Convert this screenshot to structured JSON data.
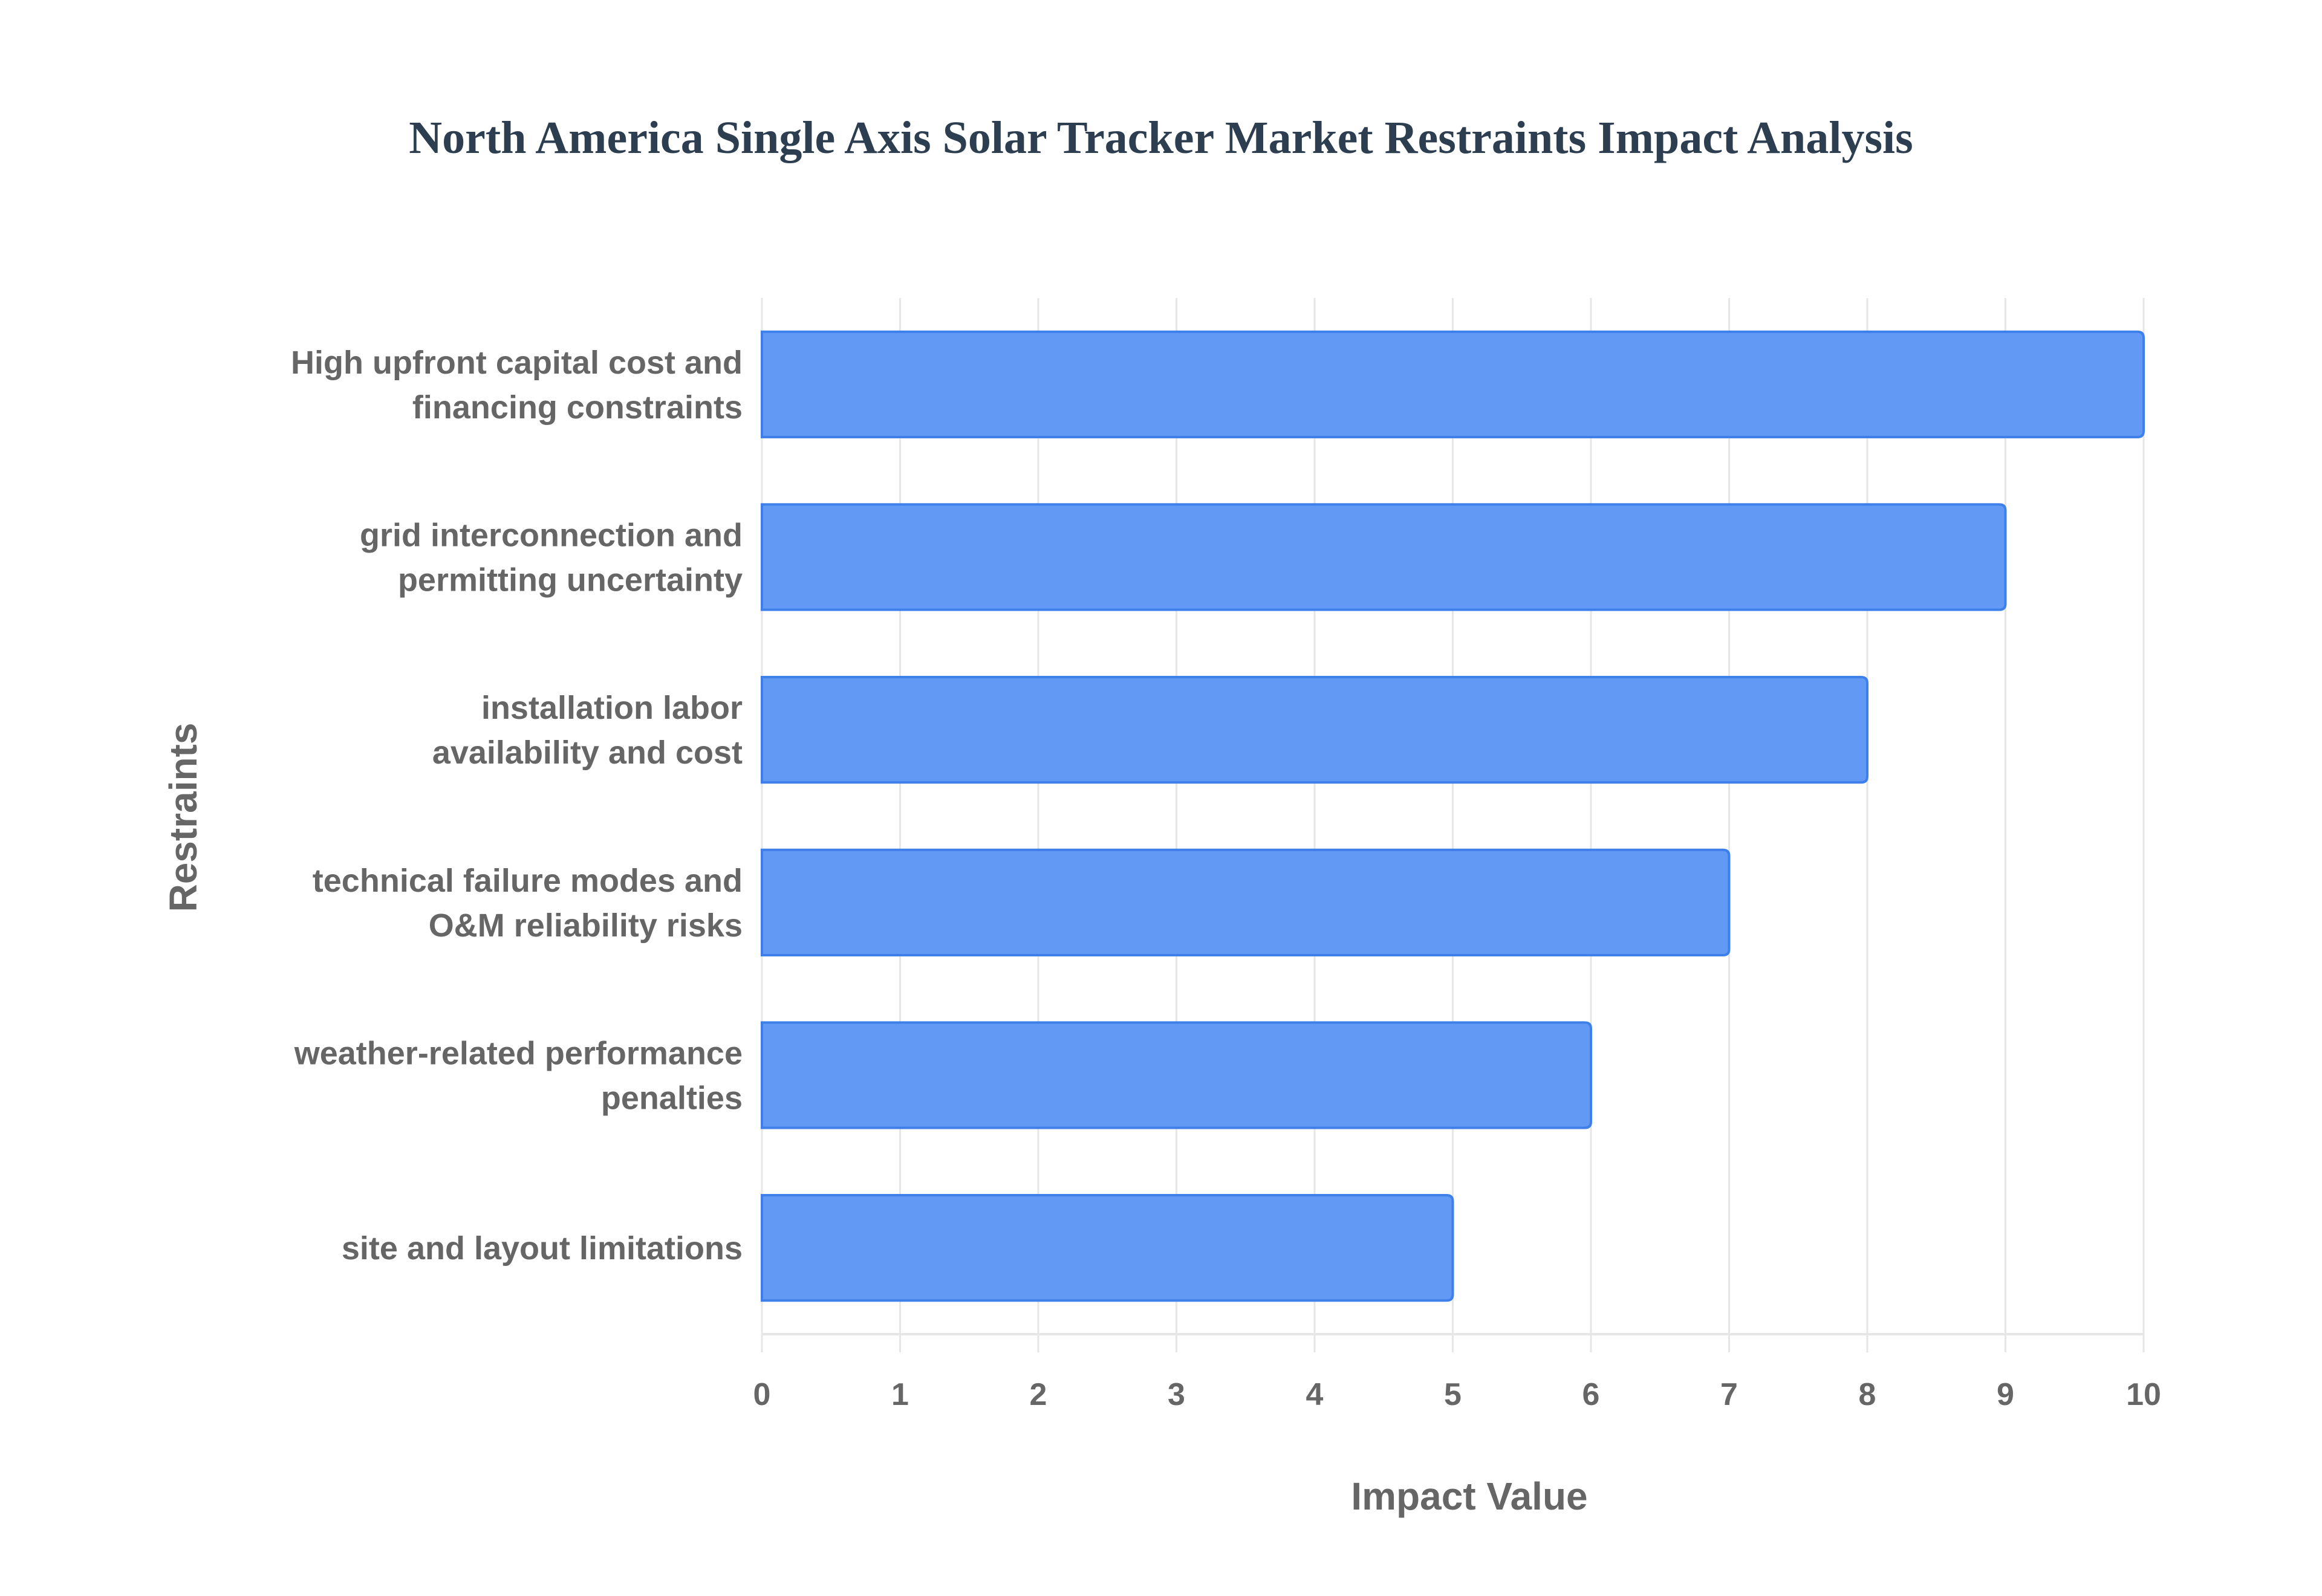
{
  "chart_data": {
    "type": "bar",
    "orientation": "horizontal",
    "title": "North America Single Axis Solar Tracker Market Restraints Impact Analysis",
    "xlabel": "Impact Value",
    "ylabel": "Restraints",
    "categories": [
      [
        "High upfront capital cost and",
        "financing constraints"
      ],
      [
        "grid interconnection and",
        "permitting uncertainty"
      ],
      [
        "installation labor",
        "availability and cost"
      ],
      [
        "technical failure modes and",
        "O&M reliability risks"
      ],
      [
        "weather-related performance",
        "penalties"
      ],
      [
        "site and layout limitations"
      ]
    ],
    "values": [
      10,
      9,
      8,
      7,
      6,
      5
    ],
    "xlim": [
      0,
      10
    ],
    "xticks": [
      "0",
      "1",
      "2",
      "3",
      "4",
      "5",
      "6",
      "7",
      "8",
      "9",
      "10"
    ],
    "grid": true,
    "legend": "none",
    "colors": {
      "bar_fill": "#6199f5",
      "bar_border": "#3f7fea",
      "grid": "#e6e6e6",
      "text": "#666666",
      "title": "#2c3e50"
    }
  }
}
